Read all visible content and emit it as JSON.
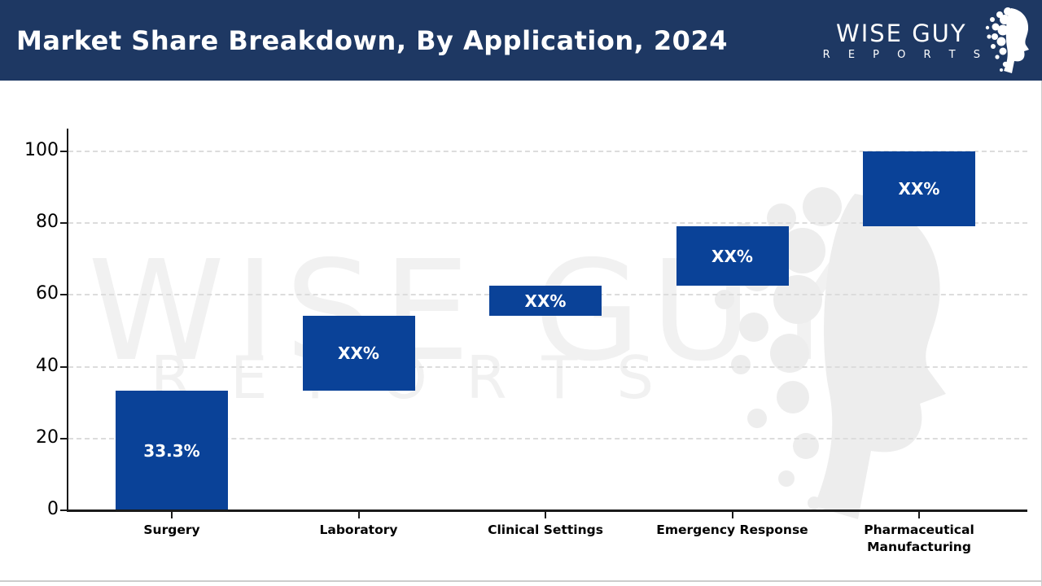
{
  "header": {
    "title": "Market Share Breakdown, By Application, 2024",
    "bg_color": "#1e3863",
    "logo": {
      "line1": "WISE GUY",
      "line2": "REPORTS"
    }
  },
  "watermark": {
    "line1": "WISE GUY",
    "line2": "REPORTS"
  },
  "chart_data": {
    "type": "bar",
    "subtype": "waterfall",
    "title": "Market Share Breakdown, By Application, 2024",
    "categories": [
      "Surgery",
      "Laboratory",
      "Clinical Settings",
      "Emergency Response",
      "Pharmaceutical Manufacturing"
    ],
    "segments": [
      {
        "category": "Surgery",
        "start": 0,
        "end": 33.3,
        "label": "33.3%"
      },
      {
        "category": "Laboratory",
        "start": 33.3,
        "end": 54.2,
        "label": "XX%"
      },
      {
        "category": "Clinical Settings",
        "start": 54.2,
        "end": 62.5,
        "label": "XX%"
      },
      {
        "category": "Emergency Response",
        "start": 62.5,
        "end": 79.2,
        "label": "XX%"
      },
      {
        "category": "Pharmaceutical Manufacturing",
        "start": 79.2,
        "end": 100,
        "label": "XX%"
      }
    ],
    "y_ticks": [
      0,
      20,
      40,
      60,
      80,
      100
    ],
    "ylim": [
      0,
      106
    ],
    "xlabel": "",
    "ylabel": "",
    "bar_color": "#0a4298",
    "grid": "horizontal-dashed",
    "legend": "none"
  }
}
